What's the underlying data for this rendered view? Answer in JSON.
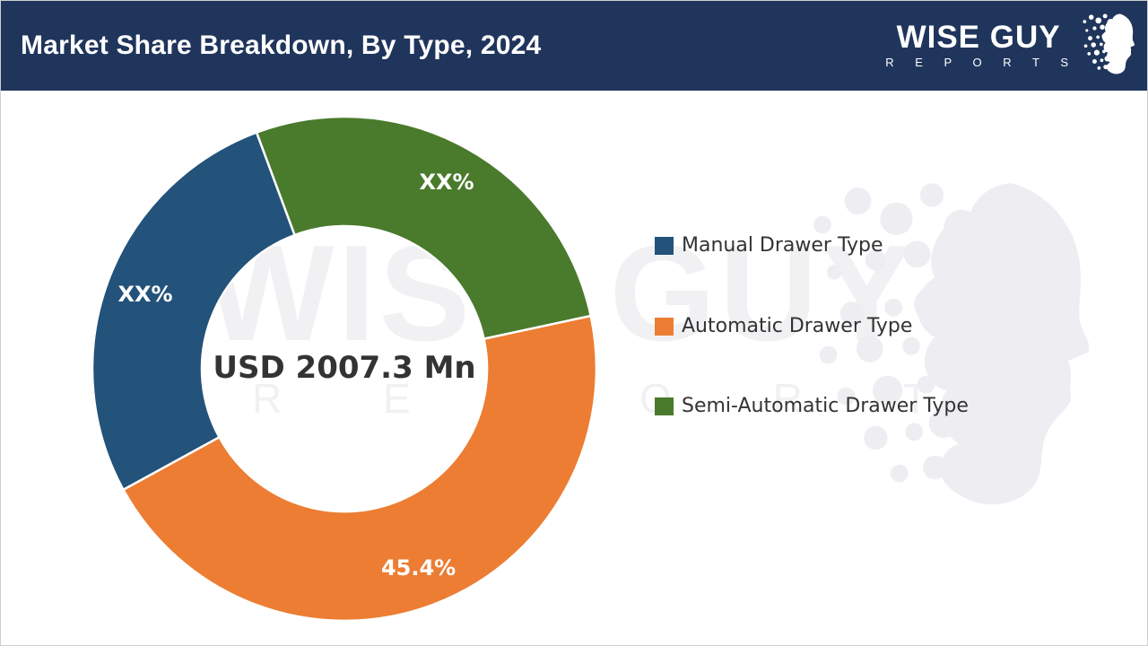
{
  "header": {
    "title": "Market Share Breakdown, By Type, 2024",
    "bg_color": "#20355c",
    "logo": {
      "name": "WISE GUY",
      "sub": "R E P O R T S"
    }
  },
  "chart_data": {
    "type": "pie",
    "subtype": "donut",
    "title": "Market Share Breakdown, By Type, 2024",
    "center_label": "USD 2007.3 Mn",
    "categories": [
      "Manual Drawer Type",
      "Automatic Drawer Type",
      "Semi-Automatic Drawer Type"
    ],
    "values": [
      27.3,
      45.4,
      27.3
    ],
    "display_labels": [
      "XX%",
      "45.4%",
      "XX%"
    ],
    "colors": [
      "#23527a",
      "#ec7d33",
      "#4a7a2b"
    ],
    "label_color": "#ffffff",
    "inner_radius_ratio": 0.566,
    "start_angle_deg": 110.4,
    "direction": "counterclockwise",
    "legend_position": "right",
    "gap_stroke": "#ffffff"
  },
  "legend": {
    "items": [
      {
        "label": "Manual Drawer Type",
        "color": "#23527a"
      },
      {
        "label": "Automatic Drawer Type",
        "color": "#ec7d33"
      },
      {
        "label": "Semi-Automatic Drawer Type",
        "color": "#4a7a2b"
      }
    ]
  },
  "watermark": {
    "name": "WISE GUY",
    "sub": "R E P O R T S"
  }
}
